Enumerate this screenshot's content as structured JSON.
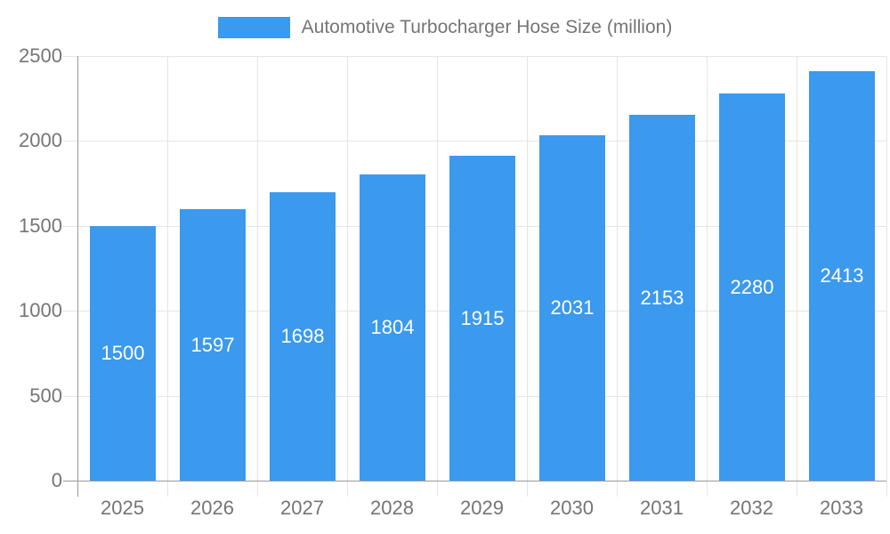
{
  "chart_data": {
    "type": "bar",
    "title": "Automotive Turbocharger Hose Size (million)",
    "categories": [
      "2025",
      "2026",
      "2027",
      "2028",
      "2029",
      "2030",
      "2031",
      "2032",
      "2033"
    ],
    "series": [
      {
        "name": "Automotive Turbocharger Hose Size (million)",
        "values": [
          1500,
          1597,
          1698,
          1804,
          1915,
          2031,
          2153,
          2280,
          2413
        ]
      }
    ],
    "bar_value_labels": [
      "1500",
      "1597",
      "1698",
      "1804",
      "1915",
      "2031",
      "2153",
      "2280",
      "2413"
    ],
    "xlabel": "",
    "ylabel": "",
    "ylim": [
      0,
      2500
    ],
    "yticks": [
      0,
      500,
      1000,
      1500,
      2000,
      2500
    ],
    "ytick_labels": [
      "0",
      "500",
      "1000",
      "1500",
      "2000",
      "2500"
    ],
    "grid": true,
    "legend_position": "top",
    "colors": {
      "bar": "#3B99EE",
      "bar_label": "#FFFFFF",
      "axis_text": "#757575",
      "axis_line": "#999999",
      "grid_line": "#E5E5E5",
      "background": "#FFFFFF"
    }
  }
}
